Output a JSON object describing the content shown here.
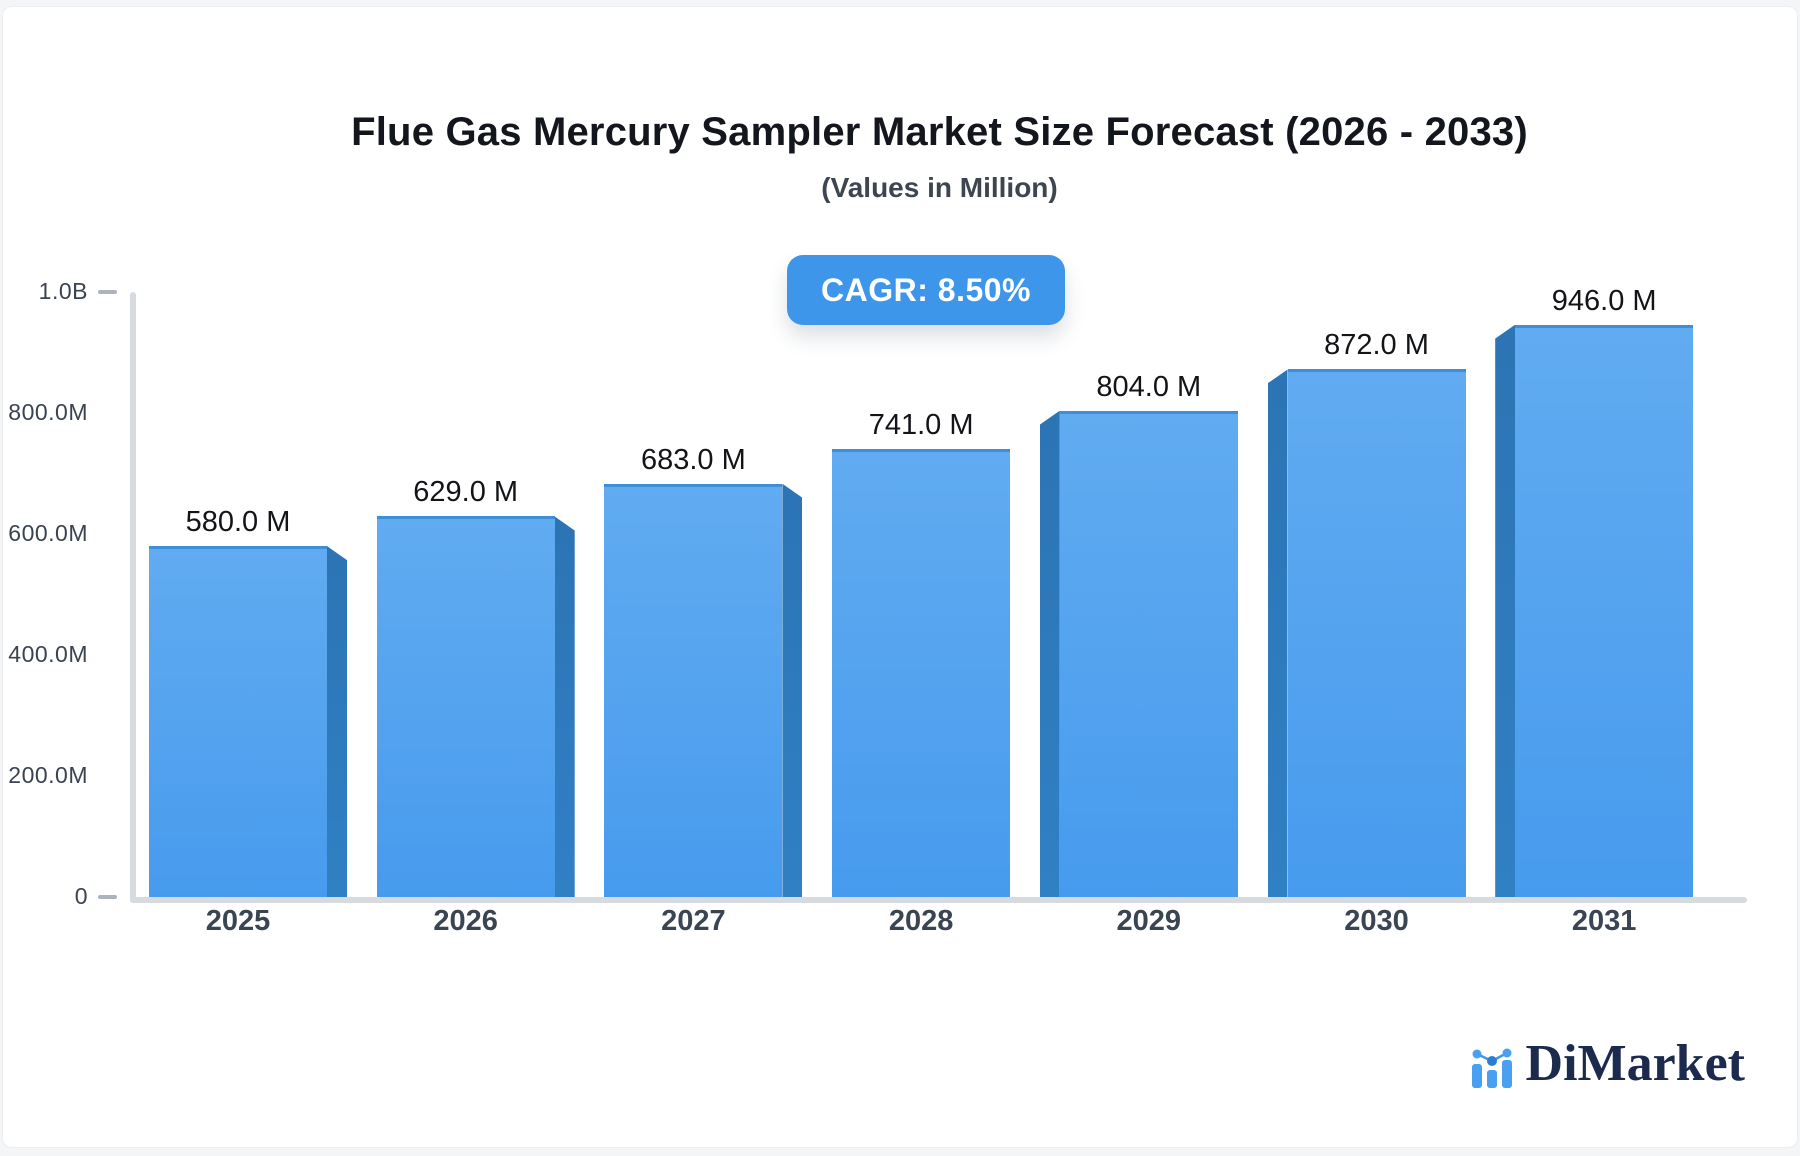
{
  "header": {
    "title": "Flue Gas Mercury Sampler Market Size Forecast (2026 - 2033)",
    "subtitle": "(Values in Million)"
  },
  "badge": {
    "label": "CAGR: 8.50%",
    "background": "#3E96EA",
    "text_color": "#FFFFFF"
  },
  "chart_data": {
    "type": "bar",
    "title": "Flue Gas Mercury Sampler Market Size Forecast (2026 - 2033)",
    "subtitle": "(Values in Million)",
    "categories": [
      "2025",
      "2026",
      "2027",
      "2028",
      "2029",
      "2030",
      "2031"
    ],
    "values": [
      580,
      629,
      683,
      741,
      804,
      872,
      946
    ],
    "value_labels": [
      "580.0 M",
      "629.0 M",
      "683.0 M",
      "741.0 M",
      "804.0 M",
      "872.0 M",
      "946.0 M"
    ],
    "value_unit": "Million",
    "cagr": "8.50%",
    "xlabel": "",
    "ylabel": "",
    "ylim": [
      0,
      1000
    ],
    "yticks": [
      {
        "label": "1.0B",
        "value": 1000
      },
      {
        "label": "800.0M",
        "value": 800
      },
      {
        "label": "600.0M",
        "value": 600
      },
      {
        "label": "400.0M",
        "value": 400
      },
      {
        "label": "200.0M",
        "value": 200
      },
      {
        "label": "0",
        "value": 0
      }
    ],
    "grid": false,
    "legend_position": "none",
    "bar_color": "#55A4EF",
    "bar_side_color": "#2E79BB",
    "bar_style": "3d"
  },
  "watermark": {
    "text": "DiMarket",
    "icon": "bar-line-chart-logo-icon",
    "text_color": "#1C2B4D",
    "icon_color": "#4AA0F0",
    "icon_dot_color": "#2D7DD2"
  }
}
